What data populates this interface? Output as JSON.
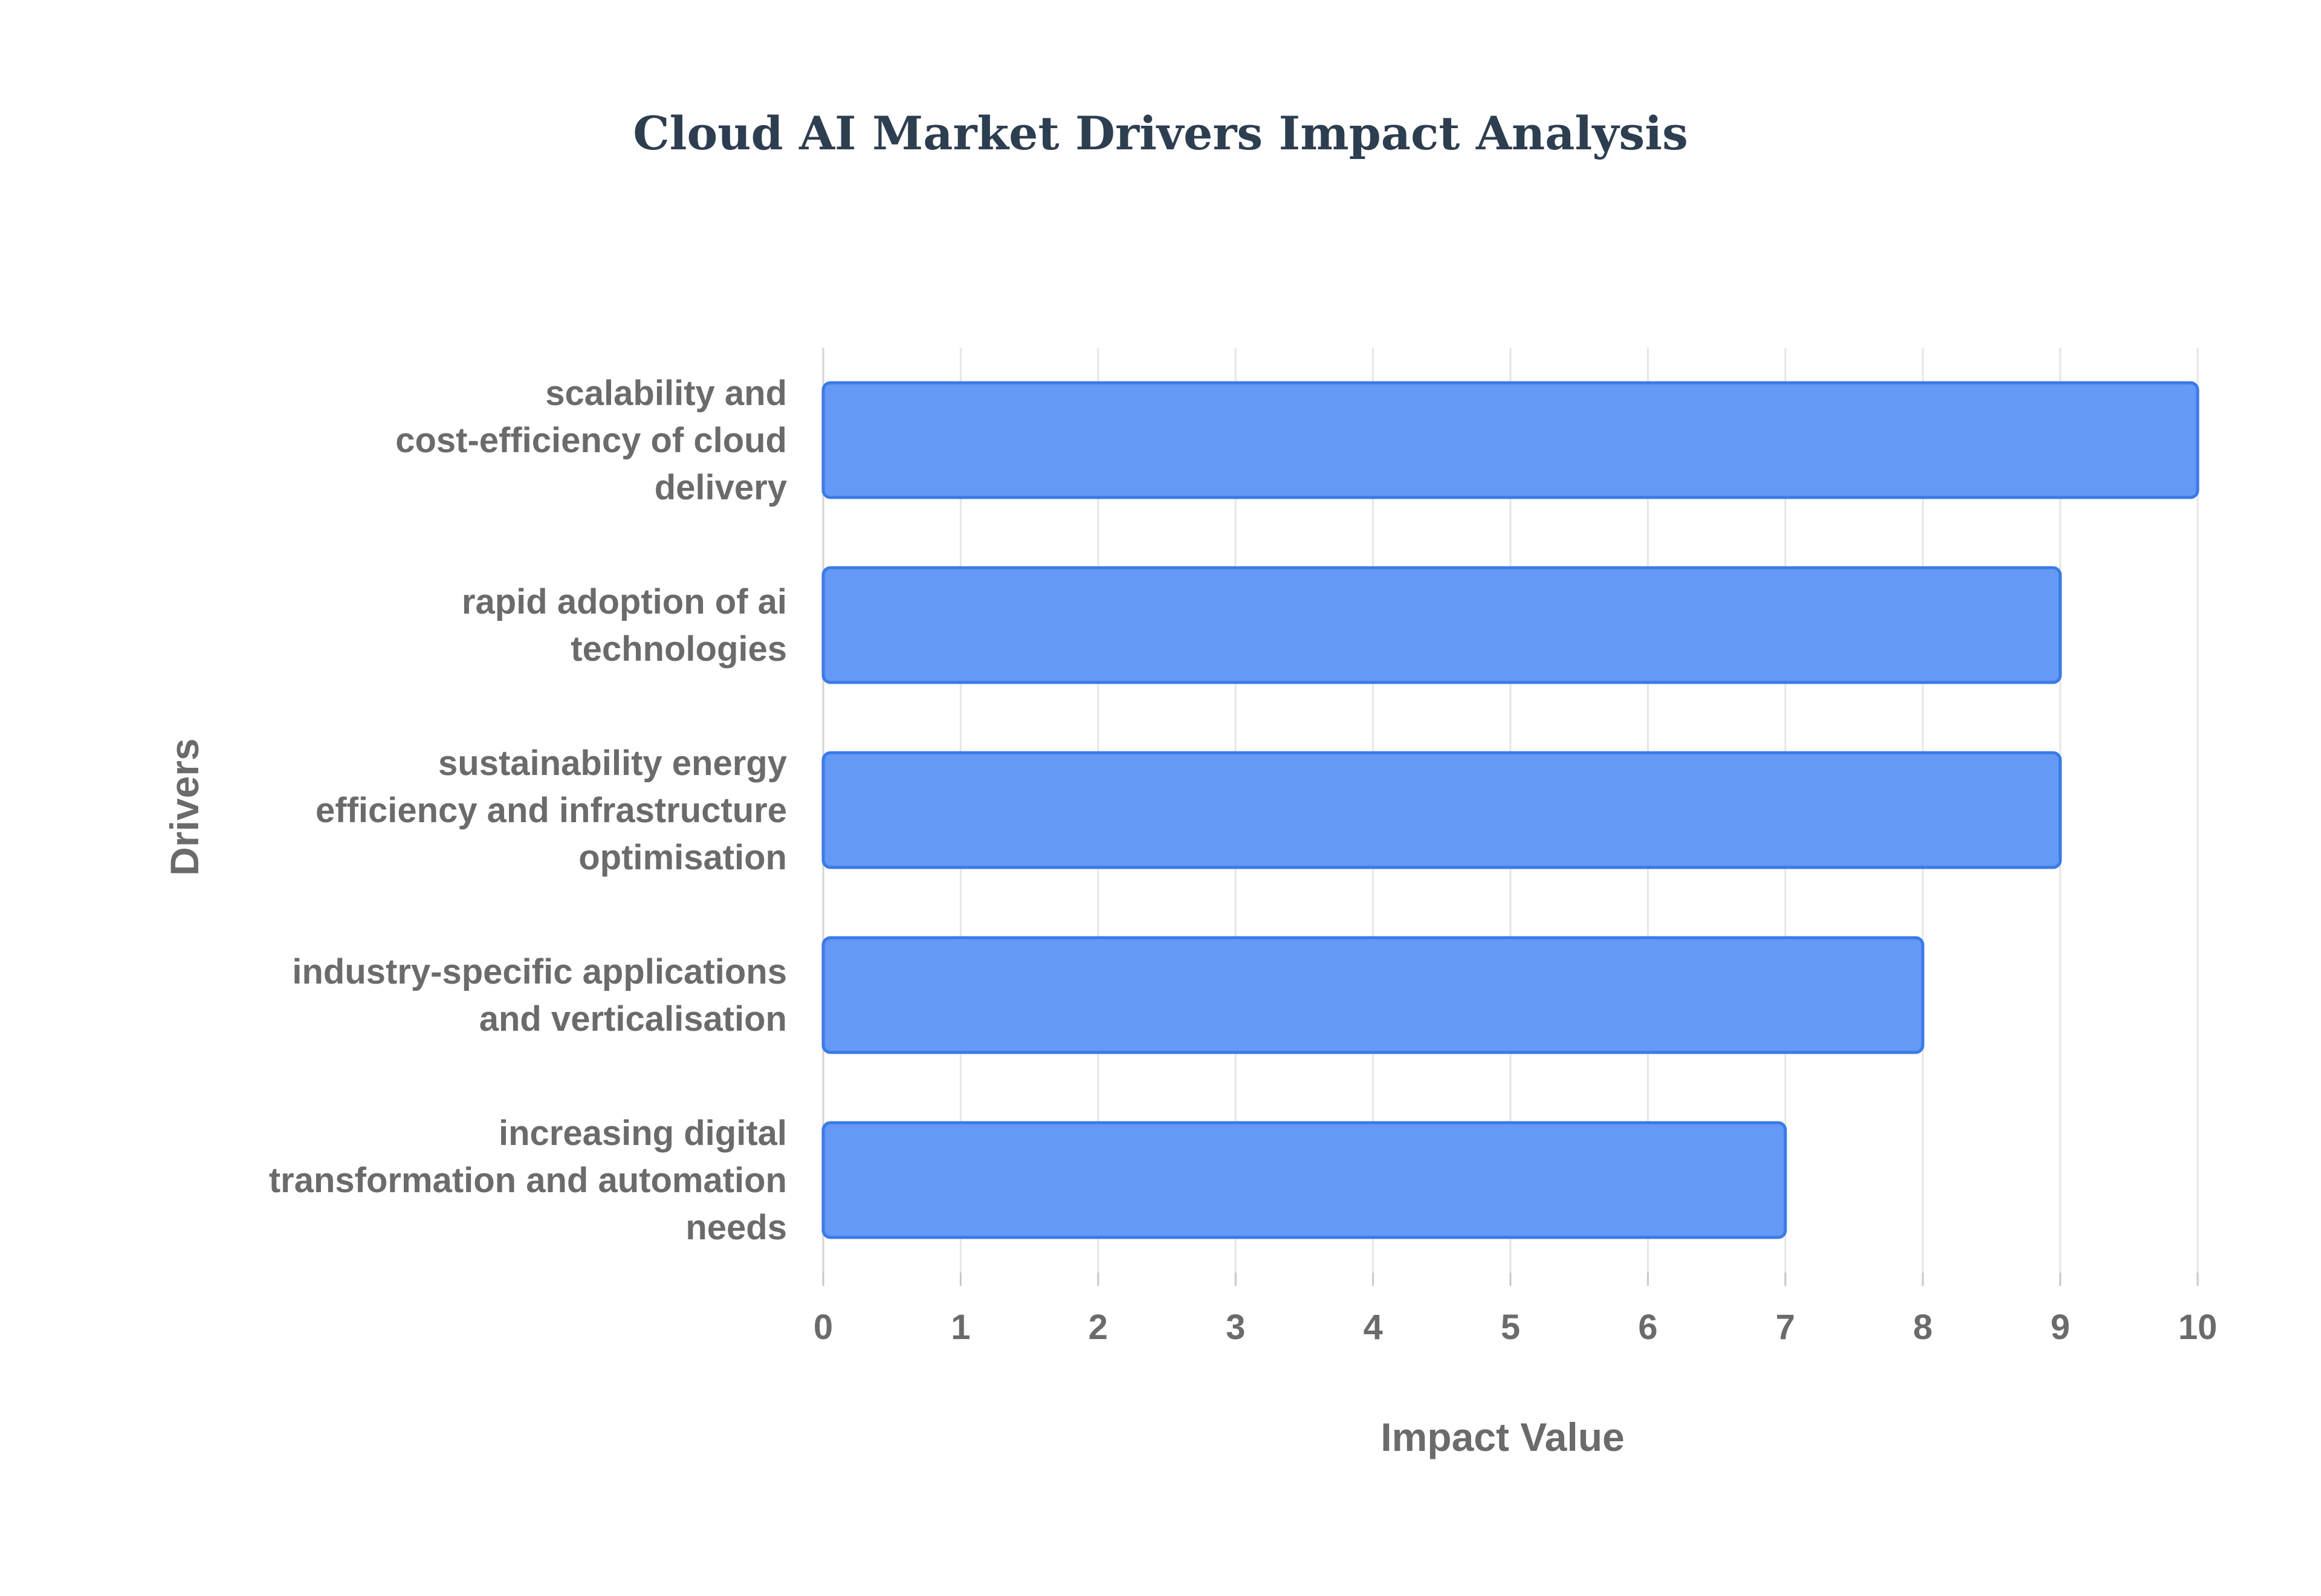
{
  "chart_data": {
    "type": "bar",
    "orientation": "horizontal",
    "title": "Cloud AI Market Drivers Impact Analysis",
    "xlabel": "Impact Value",
    "ylabel": "Drivers",
    "xlim": [
      0,
      10
    ],
    "x_ticks": [
      "0",
      "1",
      "2",
      "3",
      "4",
      "5",
      "6",
      "7",
      "8",
      "9",
      "10"
    ],
    "grid": true,
    "legend": "none",
    "categories": [
      [
        "scalability and",
        "cost-efficiency of cloud",
        "delivery"
      ],
      [
        "rapid adoption of ai",
        "technologies"
      ],
      [
        "sustainability energy",
        "efficiency and infrastructure",
        "optimisation"
      ],
      [
        "industry-specific applications",
        "and verticalisation"
      ],
      [
        "increasing digital",
        "transformation and automation",
        "needs"
      ]
    ],
    "values": [
      10,
      9,
      9,
      8,
      7
    ],
    "colors": {
      "bar_fill": "#6499f5",
      "bar_stroke": "#3b7ae8",
      "title": "#2d3e50",
      "text": "#6b6b6b",
      "grid": "#e6e6e6"
    }
  }
}
